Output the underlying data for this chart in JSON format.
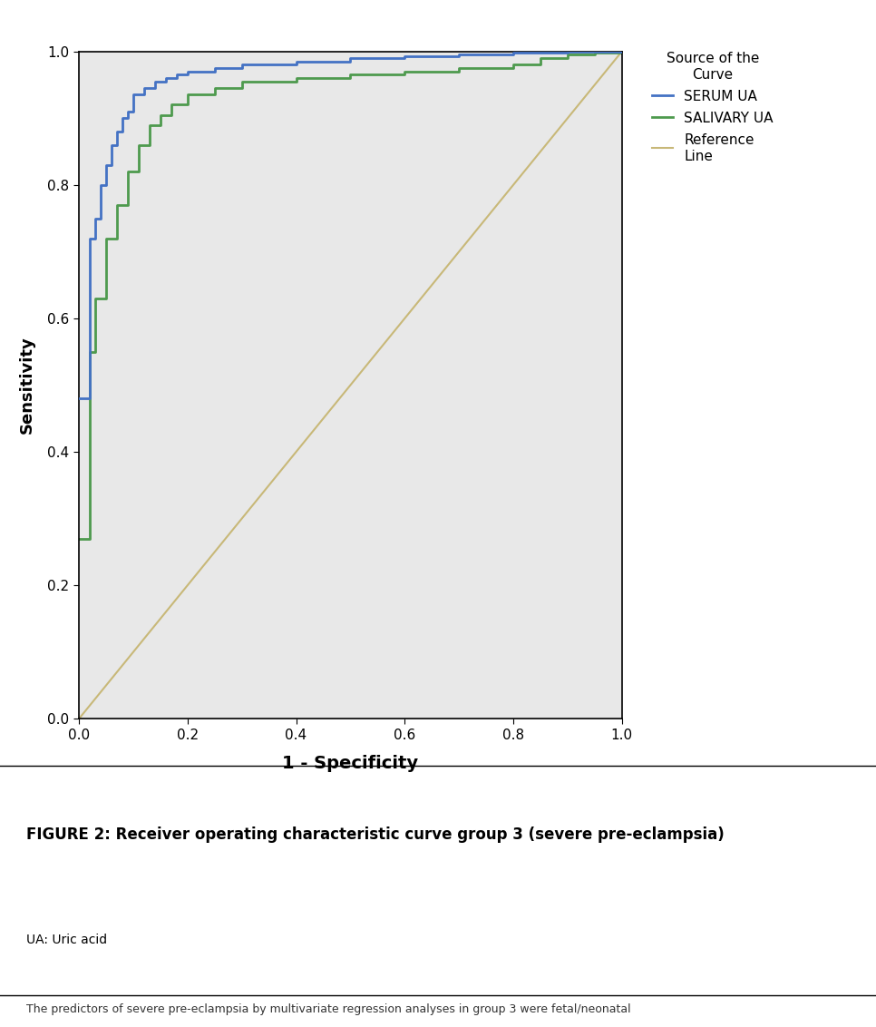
{
  "serum_x": [
    0.0,
    0.02,
    0.02,
    0.03,
    0.03,
    0.04,
    0.04,
    0.05,
    0.05,
    0.06,
    0.06,
    0.07,
    0.07,
    0.08,
    0.08,
    0.09,
    0.09,
    0.1,
    0.1,
    0.12,
    0.12,
    0.14,
    0.14,
    0.16,
    0.16,
    0.18,
    0.18,
    0.2,
    0.2,
    0.25,
    0.25,
    0.3,
    0.3,
    0.4,
    0.4,
    0.5,
    0.5,
    0.6,
    0.6,
    0.7,
    0.7,
    0.8,
    0.8,
    0.9,
    0.9,
    0.95,
    0.95,
    1.0,
    1.0
  ],
  "serum_y": [
    0.48,
    0.48,
    0.72,
    0.72,
    0.75,
    0.75,
    0.8,
    0.8,
    0.83,
    0.83,
    0.86,
    0.86,
    0.88,
    0.88,
    0.9,
    0.9,
    0.91,
    0.91,
    0.935,
    0.935,
    0.945,
    0.945,
    0.955,
    0.955,
    0.96,
    0.96,
    0.965,
    0.965,
    0.97,
    0.97,
    0.975,
    0.975,
    0.98,
    0.98,
    0.985,
    0.985,
    0.99,
    0.99,
    0.993,
    0.993,
    0.996,
    0.996,
    0.998,
    0.998,
    0.999,
    0.999,
    1.0,
    1.0,
    1.0
  ],
  "salivary_x": [
    0.0,
    0.02,
    0.02,
    0.03,
    0.03,
    0.05,
    0.05,
    0.07,
    0.07,
    0.09,
    0.09,
    0.11,
    0.11,
    0.13,
    0.13,
    0.15,
    0.15,
    0.17,
    0.17,
    0.2,
    0.2,
    0.25,
    0.25,
    0.3,
    0.3,
    0.4,
    0.4,
    0.5,
    0.5,
    0.6,
    0.6,
    0.7,
    0.7,
    0.8,
    0.8,
    0.85,
    0.85,
    0.9,
    0.9,
    0.95,
    0.95,
    1.0,
    1.0
  ],
  "salivary_y": [
    0.27,
    0.27,
    0.55,
    0.55,
    0.63,
    0.63,
    0.72,
    0.72,
    0.77,
    0.77,
    0.82,
    0.82,
    0.86,
    0.86,
    0.89,
    0.89,
    0.905,
    0.905,
    0.92,
    0.92,
    0.935,
    0.935,
    0.945,
    0.945,
    0.955,
    0.955,
    0.96,
    0.96,
    0.965,
    0.965,
    0.97,
    0.97,
    0.975,
    0.975,
    0.98,
    0.98,
    0.99,
    0.99,
    0.995,
    0.995,
    0.998,
    0.998,
    1.0
  ],
  "serum_color": "#4472C4",
  "salivary_color": "#4E9A4E",
  "reference_color": "#C8B878",
  "plot_bg_color": "#E8E8E8",
  "fig_bg_color": "#FFFFFF",
  "caption_bg_color": "#E8E8E8",
  "xlabel": "1 - Specificity",
  "ylabel": "Sensitivity",
  "legend_title": "Source of the\nCurve",
  "legend_serum": "SERUM UA",
  "legend_salivary": "SALIVARY UA",
  "legend_reference": "Reference\nLine",
  "caption_title": "FIGURE 2: Receiver operating characteristic curve group 3 (severe pre-eclampsia)",
  "caption_subtitle": "UA: Uric acid",
  "xlim": [
    0.0,
    1.0
  ],
  "ylim": [
    0.0,
    1.0
  ],
  "xticks": [
    0.0,
    0.2,
    0.4,
    0.6,
    0.8,
    1.0
  ],
  "yticks": [
    0.0,
    0.2,
    0.4,
    0.6,
    0.8,
    1.0
  ]
}
